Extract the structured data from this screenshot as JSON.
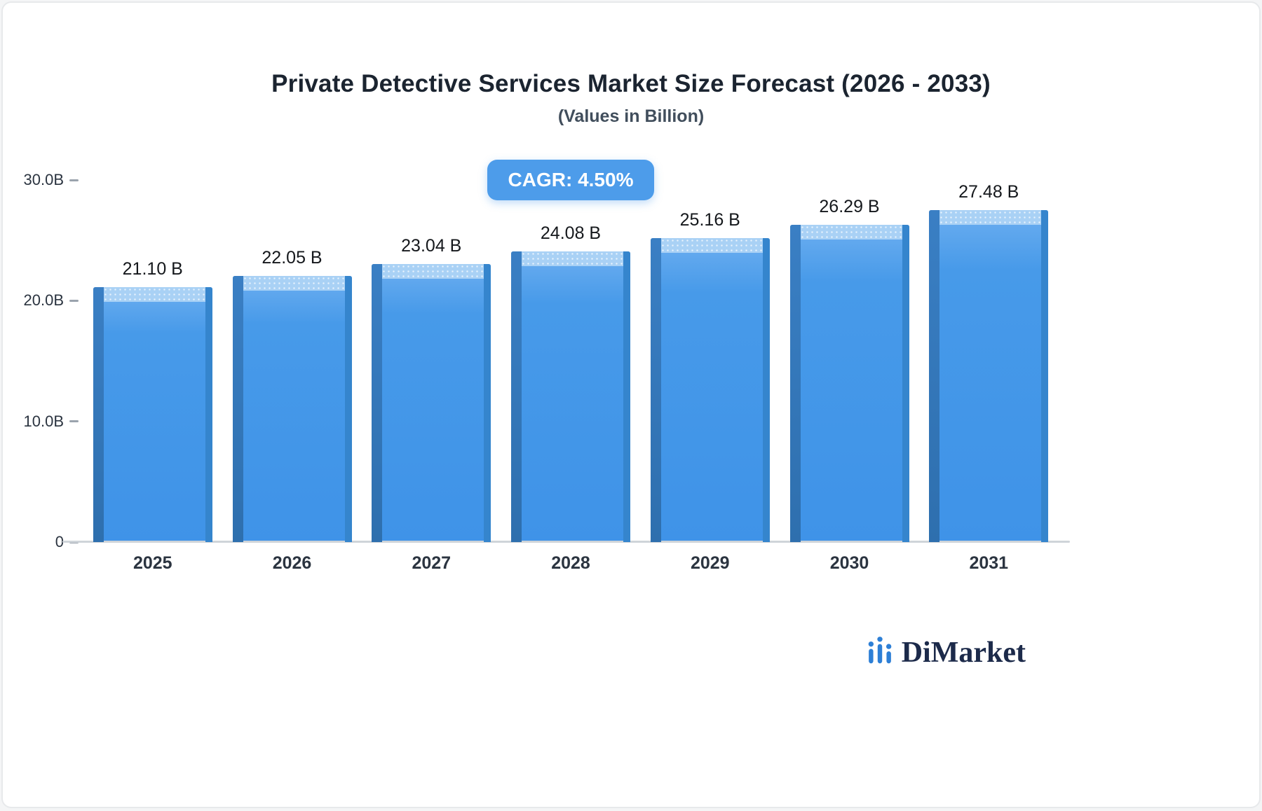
{
  "chart_data": {
    "type": "bar",
    "title": "Private Detective Services Market Size Forecast (2026 - 2033)",
    "subtitle": "(Values in Billion)",
    "badge_label": "CAGR: 4.50%",
    "categories": [
      "2025",
      "2026",
      "2027",
      "2028",
      "2029",
      "2030",
      "2031"
    ],
    "values": [
      21.1,
      22.05,
      23.04,
      24.08,
      25.16,
      26.29,
      27.48
    ],
    "value_labels": [
      "21.10 B",
      "22.05 B",
      "23.04 B",
      "24.08 B",
      "25.16 B",
      "26.29 B",
      "27.48 B"
    ],
    "xlabel": "",
    "ylabel": "",
    "ylim": [
      0,
      30
    ],
    "y_ticks": [
      {
        "value": 30,
        "label": "30.0B"
      },
      {
        "value": 20,
        "label": "20.0B"
      },
      {
        "value": 10,
        "label": "10.0B"
      },
      {
        "value": 0,
        "label": "0"
      }
    ],
    "grid": false,
    "legend": false,
    "colors": {
      "bar_main": "#3f93e8",
      "bar_side_dark": "#2e6fae",
      "bar_cap_light": "#a9d1f5",
      "badge_bg": "#4d9cea",
      "badge_text": "#ffffff",
      "title_text": "#1b2430",
      "axis_line": "#cfd4d9"
    }
  },
  "branding": {
    "logo_text": "DiMarket",
    "logo_icon": "bar-chart-icon",
    "logo_color": "#2d7fd6",
    "logo_text_color": "#1c2a4a"
  }
}
